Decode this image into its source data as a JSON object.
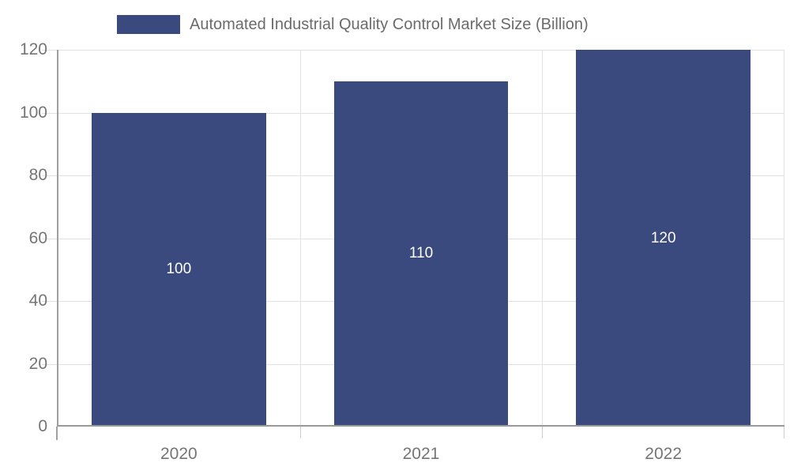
{
  "chart_data": {
    "type": "bar",
    "title": "Automated Industrial Quality Control Market Size (Billion)",
    "categories": [
      "2020",
      "2021",
      "2022"
    ],
    "values": [
      100,
      110,
      120
    ],
    "xlabel": "",
    "ylabel": "",
    "ylim": [
      0,
      120
    ],
    "yticks": [
      0,
      20,
      40,
      60,
      80,
      100,
      120
    ],
    "grid": true,
    "legend_position": "top",
    "value_labels_inside_bars": true
  },
  "legend": {
    "items": [
      {
        "label": "Automated Industrial Quality Control Market Size (Billion)",
        "swatch_color": "#3a4a7e"
      }
    ]
  },
  "colors": {
    "bar": "#3a4a7e",
    "grid": "#e2e2e2",
    "axis": "#a0a0a0",
    "x_axis": "#999999",
    "x_tick": "#cccccc",
    "tick_label": "#757575",
    "legend_text": "#6b6b6b",
    "bar_label": "#ffffff",
    "background": "#ffffff"
  }
}
